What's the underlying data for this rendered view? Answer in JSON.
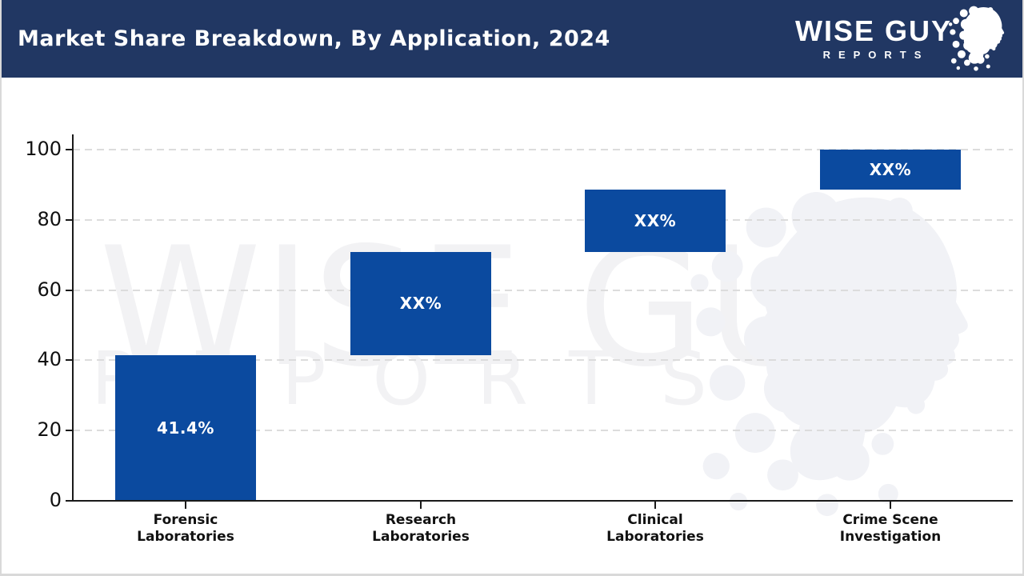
{
  "header": {
    "title": "Market Share Breakdown, By Application, 2024",
    "logo": {
      "line1": "WISE GUY",
      "line2": "REPORTS"
    }
  },
  "watermark": {
    "line1": "WISE GUY",
    "line2": "REPORTS"
  },
  "chart_data": {
    "type": "bar",
    "variant": "waterfall",
    "title": "Market Share Breakdown, By Application, 2024",
    "xlabel": "",
    "ylabel": "",
    "categories": [
      "Forensic\nLaboratories",
      "Research\nLaboratories",
      "Clinical\nLaboratories",
      "Crime Scene\nInvestigation"
    ],
    "segments": [
      {
        "category": "Forensic Laboratories",
        "start": 0,
        "end": 41.4,
        "label": "41.4%"
      },
      {
        "category": "Research Laboratories",
        "start": 41.4,
        "end": 70.9,
        "label": "XX%"
      },
      {
        "category": "Clinical Laboratories",
        "start": 70.9,
        "end": 88.6,
        "label": "XX%"
      },
      {
        "category": "Crime Scene Investigation",
        "start": 88.6,
        "end": 100,
        "label": "XX%"
      }
    ],
    "ylim": [
      0,
      100
    ],
    "yticks": [
      0,
      20,
      40,
      60,
      80,
      100
    ],
    "grid": "dashed-horizontal",
    "legend": "none",
    "bar_color": "#0b4a9f"
  },
  "colors": {
    "header_bg": "#213763",
    "bar": "#0b4a9f",
    "grid": "#dcdcdc",
    "axis": "#1a1a1a",
    "watermark": "#f2f2f4",
    "page_border": "#d9d9d9"
  }
}
